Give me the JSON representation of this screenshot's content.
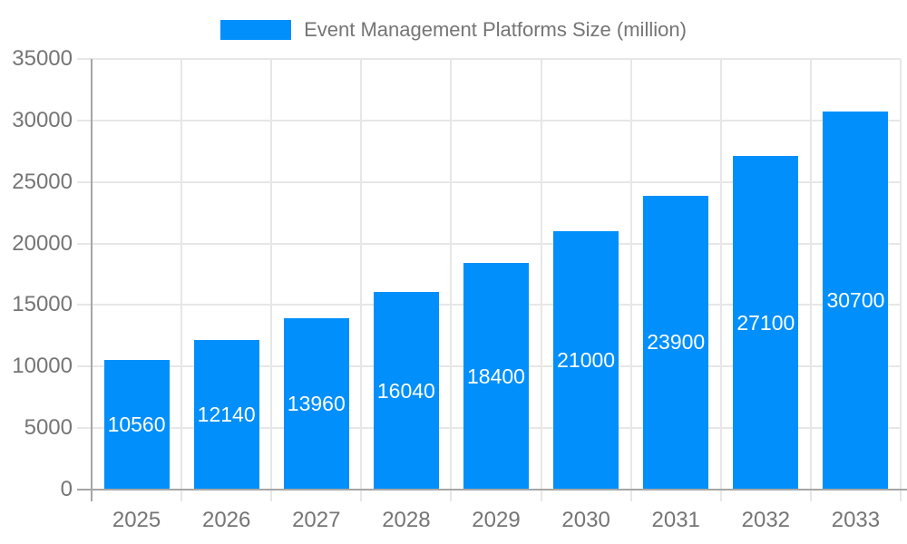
{
  "legend": {
    "label": "Event Management Platforms Size (million)"
  },
  "colors": {
    "bar": "#008FFB",
    "grid": "#e7e7e7",
    "axis": "#a6a6a6",
    "tick_label": "#757575",
    "legend_text": "#757575",
    "value_label": "#ffffff",
    "background": "#ffffff"
  },
  "chart_data": {
    "type": "bar",
    "title": "Event Management Platforms Size (million)",
    "series_name": "Event Management Platforms Size (million)",
    "categories": [
      "2025",
      "2026",
      "2027",
      "2028",
      "2029",
      "2030",
      "2031",
      "2032",
      "2033"
    ],
    "values": [
      10560,
      12140,
      13960,
      16040,
      18400,
      21000,
      23900,
      27100,
      30700
    ],
    "xlabel": "",
    "ylabel": "",
    "ylim": [
      0,
      35000
    ],
    "ytick_step": 5000,
    "ytick_labels": [
      "0",
      "5000",
      "10000",
      "15000",
      "20000",
      "25000",
      "30000",
      "35000"
    ],
    "grid": true,
    "legend_position": "top",
    "bar_value_labels": "inside-center-white"
  }
}
